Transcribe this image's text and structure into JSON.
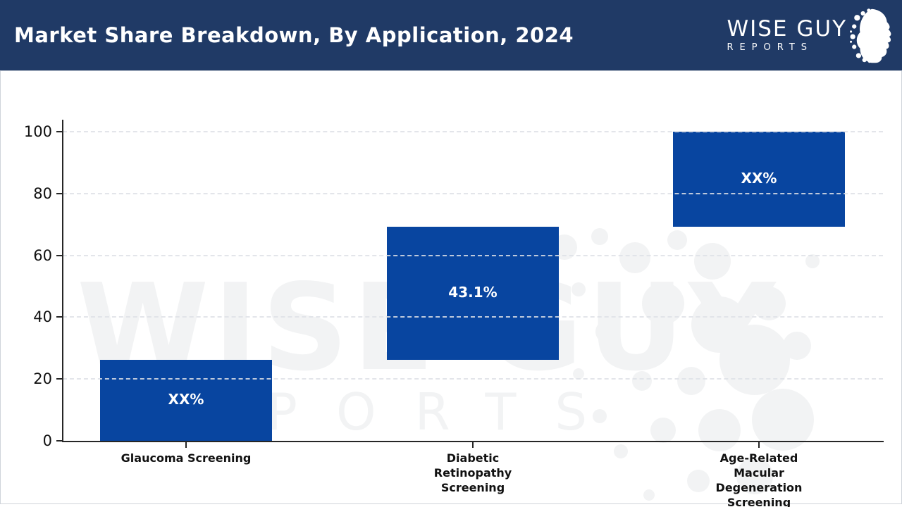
{
  "header": {
    "title": "Market Share Breakdown, By Application, 2024",
    "bg_color": "#203A66",
    "logo": {
      "primary": "WISE GUY",
      "secondary": "REPORTS"
    }
  },
  "watermark": {
    "primary": "WISE GUY",
    "secondary": "REPORTS"
  },
  "chart_data": {
    "type": "bar",
    "subtype": "floating-segment-waterfall",
    "title": "Market Share Breakdown, By Application, 2024",
    "categories": [
      "Glaucoma Screening",
      "Diabetic Retinopathy Screening",
      "Age-Related Macular Degeneration Screening"
    ],
    "tick_label_lines": [
      [
        "Glaucoma Screening"
      ],
      [
        "Diabetic",
        "Retinopathy",
        "Screening"
      ],
      [
        "Age-Related",
        "Macular",
        "Degeneration",
        "Screening"
      ]
    ],
    "segments": [
      {
        "category": "Glaucoma Screening",
        "start": 0,
        "end": 26.2,
        "label": "XX%"
      },
      {
        "category": "Diabetic Retinopathy Screening",
        "start": 26.2,
        "end": 69.3,
        "label": "43.1%"
      },
      {
        "category": "Age-Related Macular Degeneration Screening",
        "start": 69.3,
        "end": 100,
        "label": "XX%"
      }
    ],
    "ylim": [
      0,
      100
    ],
    "yticks": [
      0,
      20,
      40,
      60,
      80,
      100
    ],
    "grid": {
      "axis": "y",
      "style": "dashed",
      "over_bars": true
    },
    "bar_color": "#0845A0",
    "bar_label_color": "#FFFFFF",
    "axis_color": "#262626",
    "legend": "none"
  }
}
